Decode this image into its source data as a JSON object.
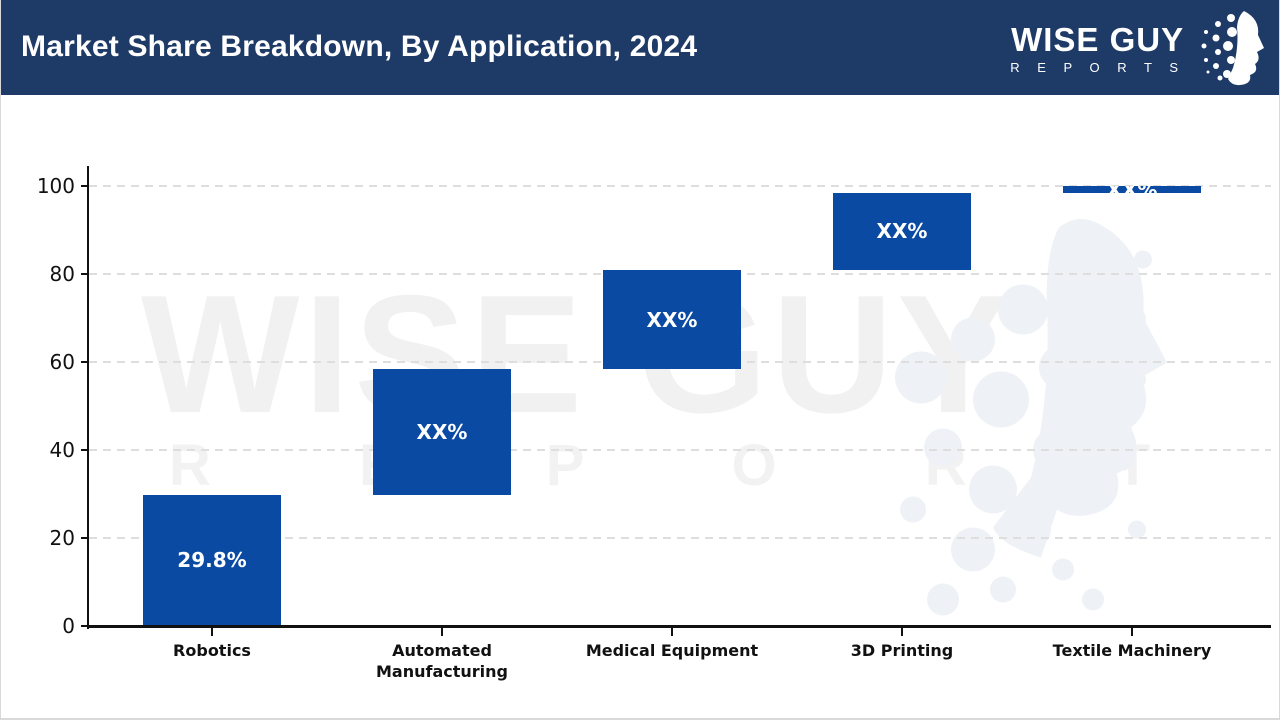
{
  "header": {
    "title": "Market Share Breakdown, By Application, 2024",
    "bg_color": "#1e3a67",
    "logo": {
      "line1": "WISE GUY",
      "line2": "R E P O R T S"
    }
  },
  "watermark": {
    "line1": "WISE GUY",
    "line2": "R E P O R T S"
  },
  "chart_data": {
    "type": "bar",
    "subtype": "waterfall-cumulative-market-share",
    "title": "Market Share Breakdown, By Application, 2024",
    "categories": [
      "Robotics",
      "Automated Manufacturing",
      "Medical Equipment",
      "3D Printing",
      "Textile Machinery"
    ],
    "segments": [
      {
        "category": "Robotics",
        "start": 0,
        "end": 29.8,
        "label": "29.8%"
      },
      {
        "category": "Automated Manufacturing",
        "start": 29.8,
        "end": 58.3,
        "label": "XX%"
      },
      {
        "category": "Medical Equipment",
        "start": 58.3,
        "end": 81.0,
        "label": "XX%"
      },
      {
        "category": "3D Printing",
        "start": 81.0,
        "end": 98.4,
        "label": "XX%"
      },
      {
        "category": "Textile Machinery",
        "start": 98.4,
        "end": 100,
        "label": "XX%"
      }
    ],
    "xlabel": "",
    "ylabel": "",
    "ylim": [
      0,
      100
    ],
    "yticks": [
      0,
      20,
      40,
      60,
      80,
      100
    ],
    "grid": {
      "horizontal": true,
      "style": "dashed",
      "color": "#dedede"
    },
    "legend": null,
    "bar_color": "#0b4aa2",
    "bar_label_color": "#ffffff",
    "axis_color": "#111111"
  }
}
